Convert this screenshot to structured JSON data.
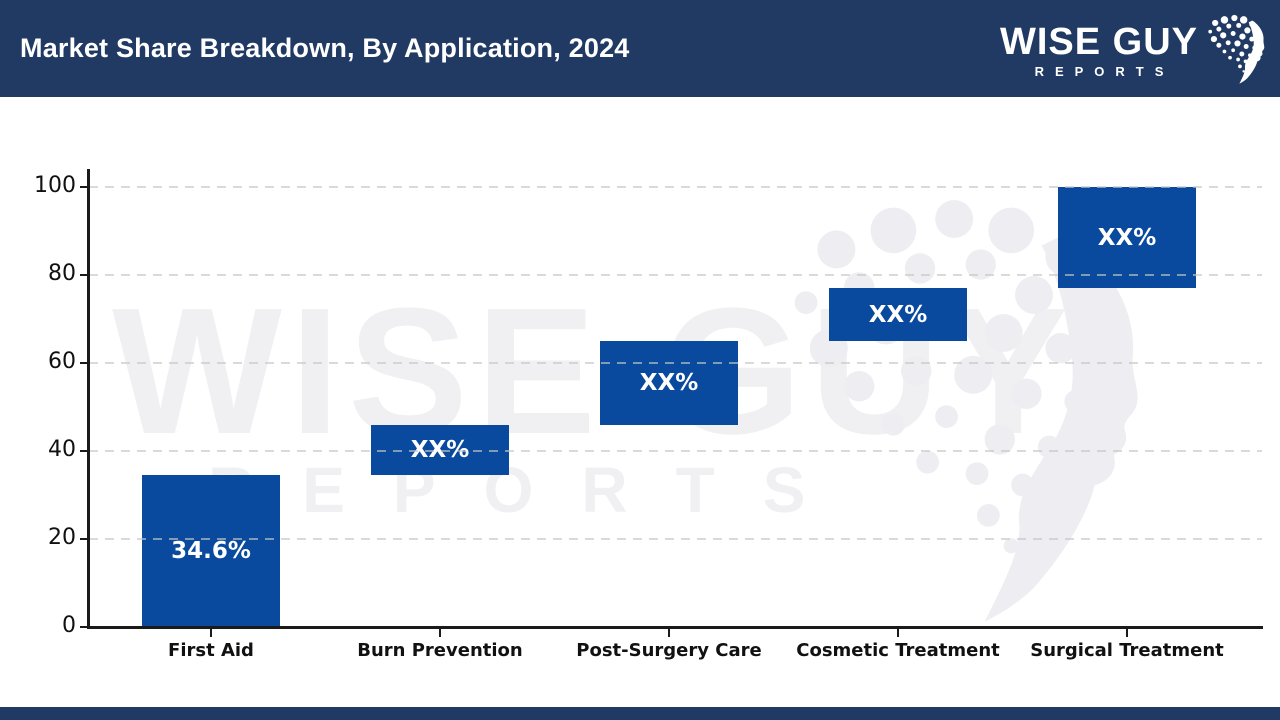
{
  "header": {
    "title": "Market Share Breakdown, By Application, 2024",
    "bg_color": "#203A64"
  },
  "logo": {
    "name_top": "WISE GUY",
    "name_bottom": "REPORTS"
  },
  "watermark": {
    "line1": "WISE GUY",
    "line2": "REPORTS"
  },
  "chart_data": {
    "type": "bar",
    "subtype": "waterfall",
    "title": "Market Share Breakdown, By Application, 2024",
    "xlabel": "",
    "ylabel": "",
    "categories": [
      "First Aid",
      "Burn Prevention",
      "Post-Surgery Care",
      "Cosmetic Treatment",
      "Surgical Treatment"
    ],
    "segments": [
      {
        "category": "First Aid",
        "start": 0,
        "end": 34.6,
        "label": "34.6%"
      },
      {
        "category": "Burn Prevention",
        "start": 34.6,
        "end": 46,
        "label": "XX%"
      },
      {
        "category": "Post-Surgery Care",
        "start": 46,
        "end": 65,
        "label": "XX%"
      },
      {
        "category": "Cosmetic Treatment",
        "start": 65,
        "end": 77,
        "label": "XX%"
      },
      {
        "category": "Surgical Treatment",
        "start": 77,
        "end": 100,
        "label": "XX%"
      }
    ],
    "yticks": [
      0,
      20,
      40,
      60,
      80,
      100
    ],
    "ylim": [
      0,
      104
    ],
    "bar_color": "#0A4A9E",
    "grid": "horizontal dashed, drawn over bars",
    "legend": "none"
  }
}
